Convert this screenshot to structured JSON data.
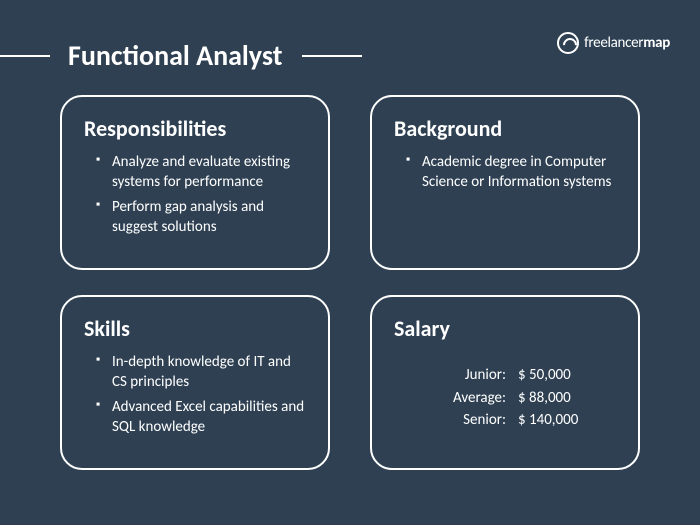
{
  "title": "Functional Analyst",
  "logo": {
    "brand_light": "freelancer",
    "brand_bold": "map"
  },
  "cards": {
    "responsibilities": {
      "title": "Responsibilities",
      "items": [
        "Analyze and evaluate existing systems for performance",
        "Perform gap analysis and suggest solutions"
      ]
    },
    "background": {
      "title": "Background",
      "items": [
        "Academic degree in Computer Science or Information systems"
      ]
    },
    "skills": {
      "title": "Skills",
      "items": [
        "In-depth knowledge of IT and CS principles",
        "Advanced Excel capabilities and SQL knowledge"
      ]
    },
    "salary": {
      "title": "Salary",
      "rows": [
        {
          "label": "Junior:",
          "value": "$ 50,000"
        },
        {
          "label": "Average:",
          "value": "$ 88,000"
        },
        {
          "label": "Senior:",
          "value": "$ 140,000"
        }
      ]
    }
  },
  "style": {
    "background_color": "#2e4052",
    "text_color": "#ffffff",
    "border_color": "#ffffff",
    "border_radius": 22,
    "title_fontsize": 28,
    "card_title_fontsize": 22,
    "body_fontsize": 15
  }
}
